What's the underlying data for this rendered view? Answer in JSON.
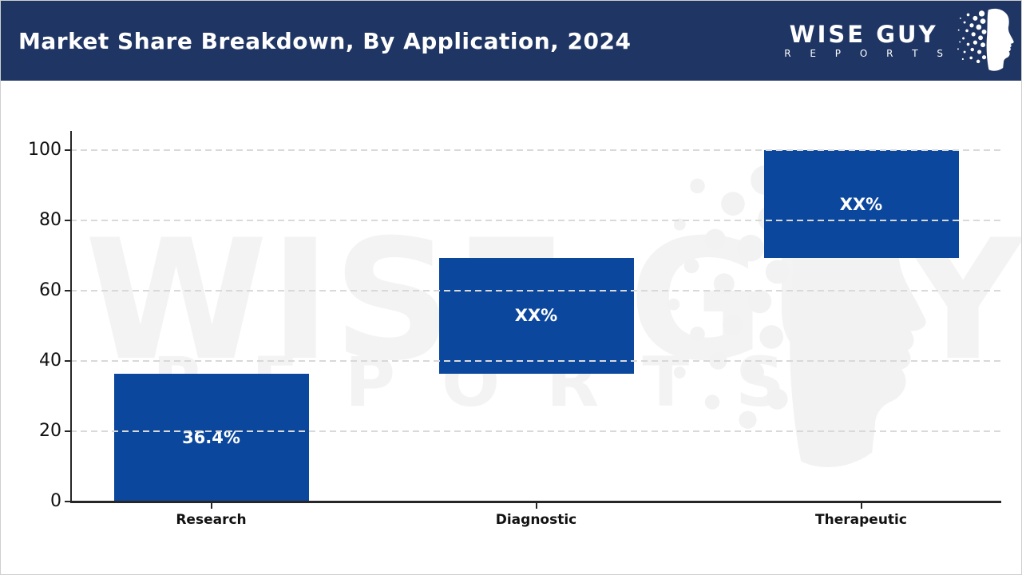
{
  "header": {
    "title": "Market Share Breakdown, By Application, 2024",
    "logo": {
      "brand_line1": "WISE GUY",
      "brand_line2": "R E P O R T S"
    }
  },
  "watermark": {
    "line1": "WISE GUY",
    "line2": "REPORTS"
  },
  "colors": {
    "header_bg": "#1f3563",
    "bar": "#0c479e",
    "grid": "#d9d9d9",
    "axis": "#262626",
    "title_text": "#ffffff",
    "bar_label_text": "#ffffff",
    "watermark": "#f3f3f3"
  },
  "chart_data": {
    "type": "bar",
    "subtype": "waterfall-breakdown",
    "title": "Market Share Breakdown, By Application, 2024",
    "categories": [
      "Research",
      "Diagnostic",
      "Therapeutic"
    ],
    "segments": [
      {
        "category": "Research",
        "start": 0,
        "end": 36.4,
        "label": "36.4%"
      },
      {
        "category": "Diagnostic",
        "start": 36.4,
        "end": 69.3,
        "label": "XX%"
      },
      {
        "category": "Therapeutic",
        "start": 69.3,
        "end": 100,
        "label": "XX%"
      }
    ],
    "yticks": [
      0,
      20,
      40,
      60,
      80,
      100
    ],
    "ylim": [
      0,
      105.5
    ],
    "xlabel": "",
    "ylabel": "",
    "grid": "horizontal-dashed",
    "gridlines_over_bars": true,
    "legend": "none"
  }
}
